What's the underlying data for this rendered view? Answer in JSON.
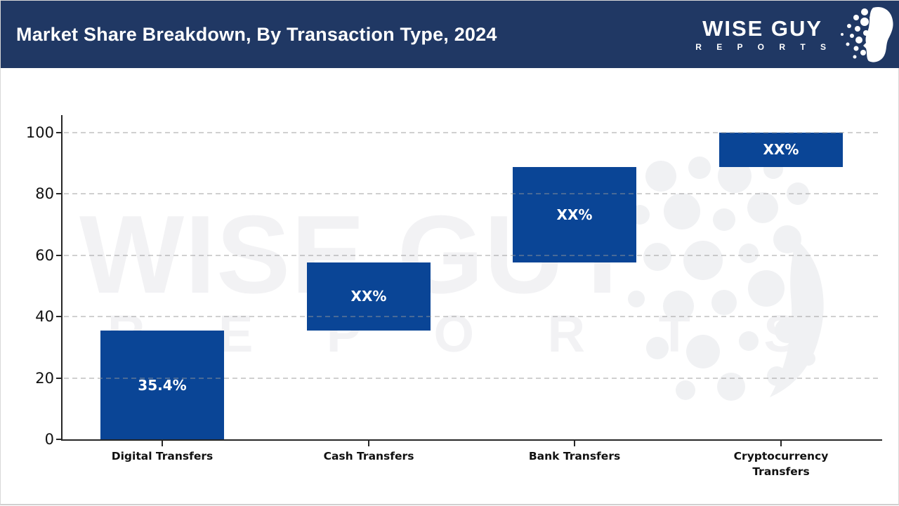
{
  "header": {
    "title": "Market Share Breakdown, By Transaction Type, 2024",
    "bg_color": "#203864",
    "logo": {
      "line1": "WISE GUY",
      "line2": "R E P O R T S"
    }
  },
  "watermark": {
    "line1": "WISE GUY",
    "line2": "R E P O R T S"
  },
  "chart_data": {
    "type": "bar",
    "subtype": "waterfall",
    "title": "Market Share Breakdown, By Transaction Type, 2024",
    "categories": [
      "Digital Transfers",
      "Cash Transfers",
      "Bank Transfers",
      "Cryptocurrency Transfers"
    ],
    "segments": [
      {
        "category": "Digital Transfers",
        "start": 0,
        "end": 35.4,
        "label": "35.4%"
      },
      {
        "category": "Cash Transfers",
        "start": 35.4,
        "end": 57.7,
        "label": "XX%"
      },
      {
        "category": "Bank Transfers",
        "start": 57.7,
        "end": 88.8,
        "label": "XX%"
      },
      {
        "category": "Cryptocurrency Transfers",
        "start": 88.8,
        "end": 100,
        "label": "XX%"
      }
    ],
    "y_ticks": [
      0,
      20,
      40,
      60,
      80,
      100
    ],
    "ylim": [
      0,
      105
    ],
    "xlabel": "",
    "ylabel": "",
    "grid": "horizontal-dashed",
    "legend": "none",
    "bar_color": "#0a4596",
    "bar_label_color": "#ffffff",
    "axis_color": "#262626"
  }
}
